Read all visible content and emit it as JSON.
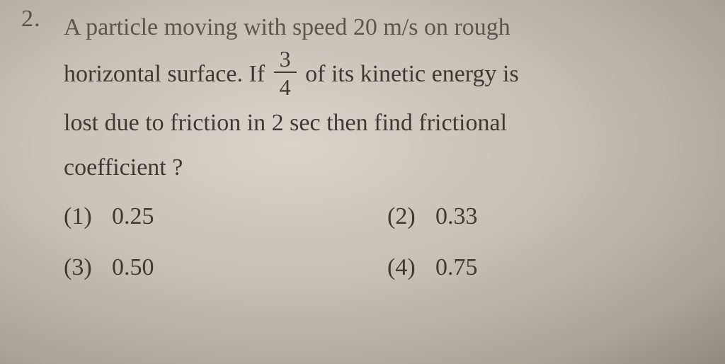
{
  "question": {
    "number": "2.",
    "text_part1": "A particle moving with speed 20 m/s on rough",
    "text_part2a": "horizontal surface. If ",
    "frac_num": "3",
    "frac_den": "4",
    "text_part2b": " of its kinetic energy is",
    "text_part3": "lost due to friction in 2 sec then find frictional",
    "text_part4": "coefficient ?"
  },
  "options": [
    {
      "label": "(1)",
      "value": "0.25"
    },
    {
      "label": "(2)",
      "value": "0.33"
    },
    {
      "label": "(3)",
      "value": "0.50"
    },
    {
      "label": "(4)",
      "value": "0.75"
    }
  ],
  "style": {
    "background_inner": "#d8d4cc",
    "background_outer": "#8e8a80",
    "text_color": "#3d3a34",
    "faded_text_color": "#5a564f",
    "font_family": "Georgia, Times New Roman, serif",
    "body_fontsize_pt": 26,
    "line_height": 1.85
  }
}
